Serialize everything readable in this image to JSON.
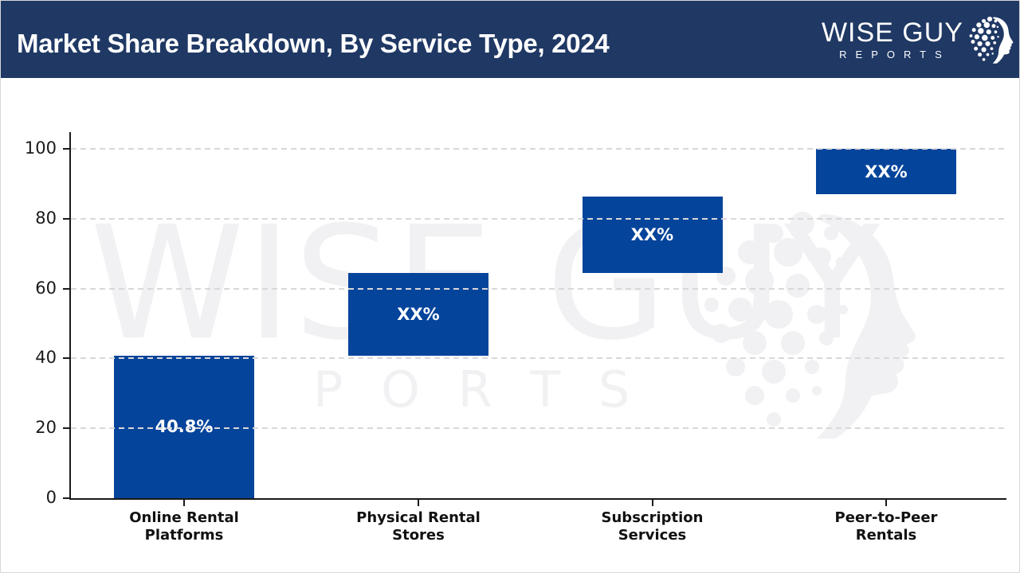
{
  "header": {
    "title": "Market Share Breakdown, By Service Type, 2024",
    "bg_color": "#1f3864",
    "text_color": "#ffffff",
    "logo": {
      "line1": "WISE GUY",
      "line2": "REPORTS"
    }
  },
  "watermark": {
    "line1": "WISE GUY",
    "line2": "P O R T S"
  },
  "chart_data": {
    "type": "waterfall",
    "title": "Market Share Breakdown, By Service Type, 2024",
    "categories": [
      "Online Rental\nPlatforms",
      "Physical Rental\nStores",
      "Subscription\nServices",
      "Peer-to-Peer\nRentals"
    ],
    "bars": [
      {
        "category": "Online Rental Platforms",
        "start": 0,
        "end": 40.8,
        "label": "40.8%"
      },
      {
        "category": "Physical Rental Stores",
        "start": 40.8,
        "end": 64.5,
        "label": "XX%"
      },
      {
        "category": "Subscription Services",
        "start": 64.5,
        "end": 86.3,
        "label": "XX%"
      },
      {
        "category": "Peer-to-Peer Rentals",
        "start": 87,
        "end": 100,
        "label": "XX%"
      }
    ],
    "xlabel": "",
    "ylabel": "",
    "ylim": [
      0,
      100
    ],
    "yticks": [
      0,
      20,
      40,
      60,
      80,
      100
    ],
    "grid": true,
    "legend": false,
    "bar_color": "#05449b",
    "grid_color": "#d8d8d8",
    "axis_color": "#1a1a1a",
    "value_label_color": "#ffffff"
  }
}
